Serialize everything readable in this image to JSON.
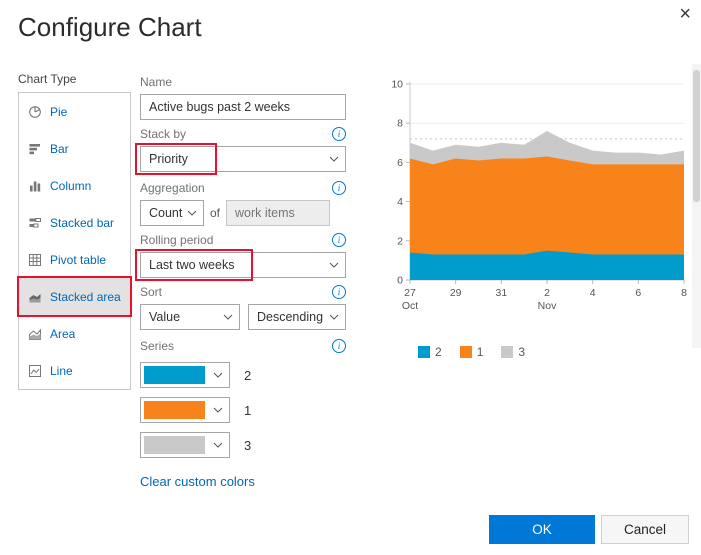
{
  "dialog": {
    "title": "Configure Chart"
  },
  "icons": {
    "close": "×",
    "info": "i"
  },
  "chart_type": {
    "label": "Chart Type",
    "items": [
      {
        "label": "Pie"
      },
      {
        "label": "Bar"
      },
      {
        "label": "Column"
      },
      {
        "label": "Stacked bar"
      },
      {
        "label": "Pivot table"
      },
      {
        "label": "Stacked area",
        "selected": true,
        "highlighted": true
      },
      {
        "label": "Area"
      },
      {
        "label": "Line"
      }
    ]
  },
  "form": {
    "name": {
      "label": "Name",
      "value": "Active bugs past 2 weeks"
    },
    "stack_by": {
      "label": "Stack by",
      "value": "Priority",
      "highlighted": true
    },
    "aggregation": {
      "label": "Aggregation",
      "value": "Count",
      "of_label": "of",
      "field_placeholder": "work items"
    },
    "rolling_period": {
      "label": "Rolling period",
      "value": "Last two weeks",
      "highlighted": true
    },
    "sort": {
      "label": "Sort",
      "value": "Value",
      "direction": "Descending"
    },
    "series": {
      "label": "Series",
      "rows": [
        {
          "color": "#009CCC",
          "label": "2"
        },
        {
          "color": "#F8831B",
          "label": "1"
        },
        {
          "color": "#C9C9C9",
          "label": "3"
        }
      ]
    },
    "clear_link": "Clear custom colors"
  },
  "chart_data": {
    "type": "area",
    "stacked": true,
    "title": "",
    "xlabel": "",
    "ylabel": "",
    "ylim": [
      0,
      10
    ],
    "y_ticks": [
      0,
      2,
      4,
      6,
      8,
      10
    ],
    "x": [
      "27 Oct",
      "28 Oct",
      "29 Oct",
      "30 Oct",
      "31 Oct",
      "1 Nov",
      "2 Nov",
      "3 Nov",
      "4 Nov",
      "5 Nov",
      "6 Nov",
      "7 Nov",
      "8 Nov"
    ],
    "x_tick_labels": [
      {
        "index": 0,
        "label": "27",
        "sub": "Oct"
      },
      {
        "index": 2,
        "label": "29"
      },
      {
        "index": 4,
        "label": "31"
      },
      {
        "index": 6,
        "label": "2",
        "sub": "Nov"
      },
      {
        "index": 8,
        "label": "4"
      },
      {
        "index": 10,
        "label": "6"
      },
      {
        "index": 12,
        "label": "8"
      }
    ],
    "series": [
      {
        "name": "2",
        "color": "#009CCC",
        "values": [
          1.4,
          1.3,
          1.3,
          1.3,
          1.3,
          1.3,
          1.5,
          1.4,
          1.3,
          1.3,
          1.3,
          1.3,
          1.3
        ]
      },
      {
        "name": "1",
        "color": "#F8831B",
        "values": [
          4.8,
          4.6,
          4.9,
          4.8,
          4.9,
          4.9,
          4.8,
          4.7,
          4.6,
          4.6,
          4.6,
          4.6,
          4.6
        ]
      },
      {
        "name": "3",
        "color": "#C9C9C9",
        "values": [
          0.8,
          0.7,
          0.7,
          0.7,
          0.8,
          0.7,
          1.3,
          0.9,
          0.7,
          0.6,
          0.6,
          0.5,
          0.7
        ]
      }
    ],
    "reference_line": {
      "y": 7.2,
      "style": "dashed",
      "color": "#c4c4c4"
    },
    "legend_position": "bottom",
    "legend": [
      {
        "label": "2",
        "color": "#009CCC"
      },
      {
        "label": "1",
        "color": "#F8831B"
      },
      {
        "label": "3",
        "color": "#C9C9C9"
      }
    ]
  },
  "footer": {
    "ok": "OK",
    "cancel": "Cancel"
  }
}
